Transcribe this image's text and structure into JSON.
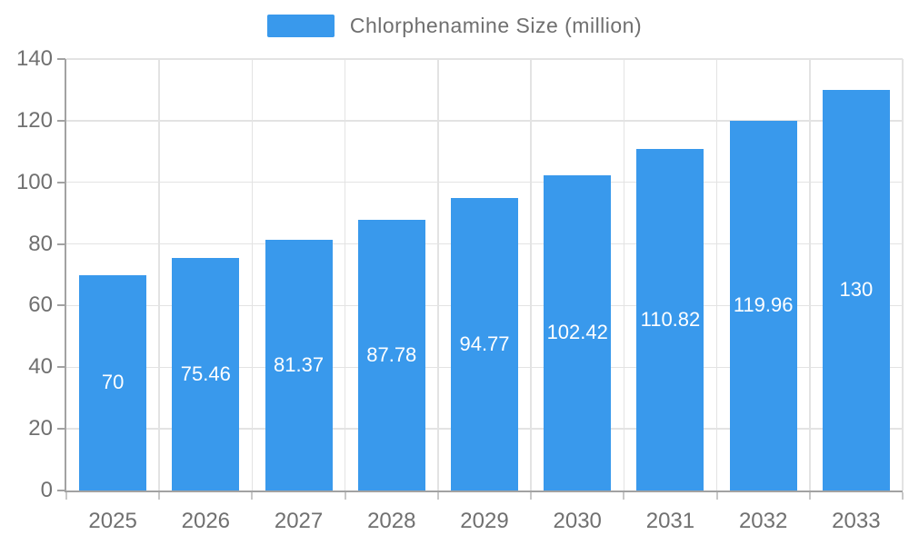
{
  "chart_data": {
    "type": "bar",
    "title": "",
    "legend": "Chlorphenamine Size (million)",
    "legend_position": "top",
    "categories": [
      "2025",
      "2026",
      "2027",
      "2028",
      "2029",
      "2030",
      "2031",
      "2032",
      "2033"
    ],
    "series": [
      {
        "name": "Chlorphenamine Size (million)",
        "values": [
          70,
          75.46,
          81.37,
          87.78,
          94.77,
          102.42,
          110.82,
          119.96,
          130
        ],
        "value_labels": [
          "70",
          "75.46",
          "81.37",
          "87.78",
          "94.77",
          "102.42",
          "110.82",
          "119.96",
          "130"
        ]
      }
    ],
    "xlabel": "",
    "ylabel": "",
    "ylim": [
      0,
      140
    ],
    "yticks": [
      0,
      20,
      40,
      60,
      80,
      100,
      120,
      140
    ],
    "grid": true,
    "value_label_position": "inside-center"
  },
  "colors": {
    "bar": "#3999EC",
    "axis_line": "#A2A2A2",
    "grid_line": "#E3E3E3",
    "x_tick": "#C8C8C8",
    "y_tick": "#A2A2A2",
    "tick_label": "#707070",
    "legend_text": "#6F6F6F",
    "bar_label": "#FFFFFF",
    "background": "#FFFFFF"
  }
}
